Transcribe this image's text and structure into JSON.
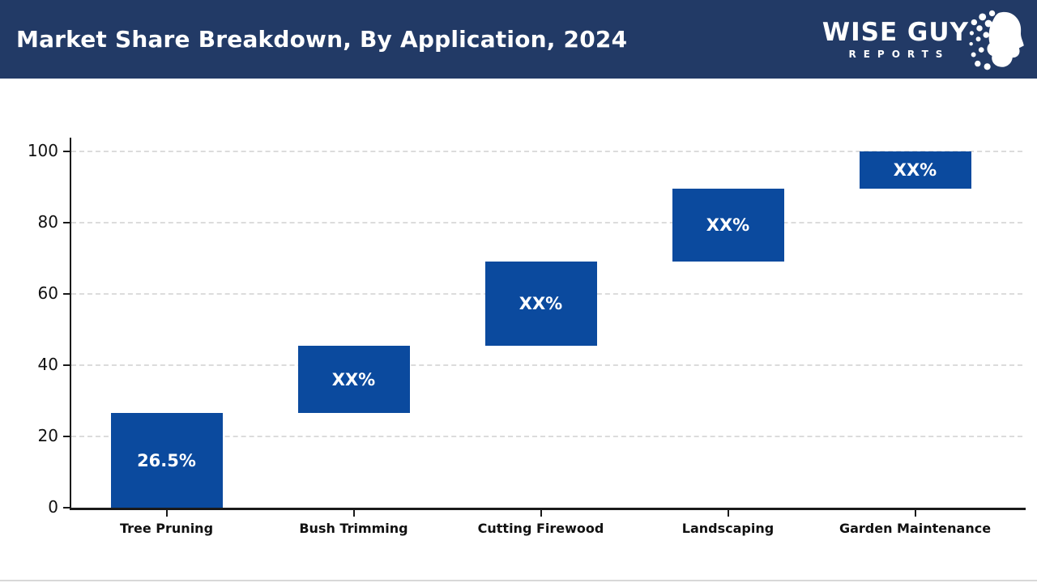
{
  "header": {
    "title": "Market Share Breakdown, By Application, 2024",
    "brand_line1": "WISE GUY",
    "brand_line2": "REPORTS"
  },
  "watermark": {
    "line1": "WISE GUY",
    "line2": "REPORTS"
  },
  "colors": {
    "header_bg": "#223a66",
    "bar": "#0b4a9e",
    "grid": "#dcdcdc",
    "axis": "#1a1a1a",
    "watermark": "#f2f2f4",
    "bar_label": "#ffffff"
  },
  "chart_data": {
    "type": "bar",
    "variant": "waterfall-floating-bars",
    "title": "Market Share Breakdown, By Application, 2024",
    "categories": [
      "Tree Pruning",
      "Bush Trimming",
      "Cutting Firewood",
      "Landscaping",
      "Garden Maintenance"
    ],
    "segments": [
      {
        "category": "Tree Pruning",
        "start": 0,
        "end": 26.5,
        "label": "26.5%"
      },
      {
        "category": "Bush Trimming",
        "start": 26.5,
        "end": 45.5,
        "label": "XX%"
      },
      {
        "category": "Cutting Firewood",
        "start": 45.5,
        "end": 69,
        "label": "XX%"
      },
      {
        "category": "Landscaping",
        "start": 69,
        "end": 89.5,
        "label": "XX%"
      },
      {
        "category": "Garden Maintenance",
        "start": 89.5,
        "end": 100,
        "label": "XX%"
      }
    ],
    "y_ticks": [
      0,
      20,
      40,
      60,
      80,
      100
    ],
    "ylim": [
      0,
      104
    ],
    "xlabel": "",
    "ylabel": "",
    "grid": "horizontal-dashed",
    "legend": "none",
    "bar_color": "#0b4a9e",
    "label_color": "#ffffff"
  }
}
